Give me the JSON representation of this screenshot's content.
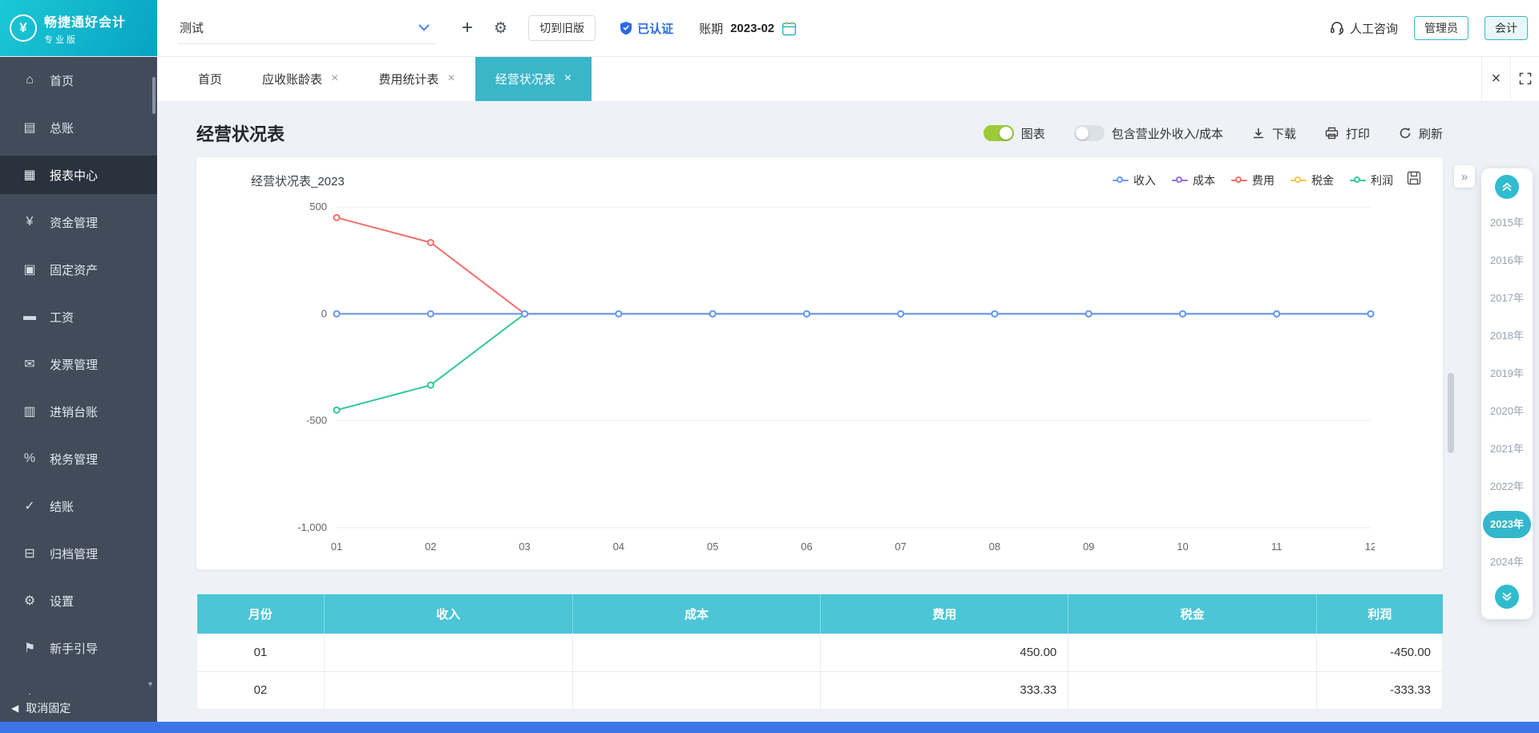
{
  "topbar": {
    "logo_title": "畅捷通好会计",
    "logo_subtitle": "专业版",
    "workspace": "测试",
    "switch_old": "切到旧版",
    "certified": "已认证",
    "period_label": "账期",
    "period_value": "2023-02",
    "consult": "人工咨询",
    "admin": "管理员",
    "role": "会计"
  },
  "sidebar": {
    "items": [
      {
        "label": "首页",
        "icon": "home",
        "active": false
      },
      {
        "label": "总账",
        "icon": "general-ledger",
        "active": false
      },
      {
        "label": "报表中心",
        "icon": "report-center",
        "active": true
      },
      {
        "label": "资金管理",
        "icon": "funds",
        "active": false
      },
      {
        "label": "固定资产",
        "icon": "fixed-assets",
        "active": false
      },
      {
        "label": "工资",
        "icon": "payroll",
        "active": false
      },
      {
        "label": "发票管理",
        "icon": "invoice",
        "active": false
      },
      {
        "label": "进销台账",
        "icon": "inventory-ledger",
        "active": false
      },
      {
        "label": "税务管理",
        "icon": "tax",
        "active": false
      },
      {
        "label": "结账",
        "icon": "closing",
        "active": false
      },
      {
        "label": "归档管理",
        "icon": "archive",
        "active": false
      },
      {
        "label": "设置",
        "icon": "settings",
        "active": false
      },
      {
        "label": "新手引导",
        "icon": "guide",
        "active": false
      }
    ],
    "unpin": "取消固定"
  },
  "tabs": [
    {
      "label": "首页",
      "closable": false,
      "active": false
    },
    {
      "label": "应收账龄表",
      "closable": true,
      "active": false
    },
    {
      "label": "费用统计表",
      "closable": true,
      "active": false
    },
    {
      "label": "经营状况表",
      "closable": true,
      "active": true
    }
  ],
  "page": {
    "title": "经营状况表",
    "chart_toggle": "图表",
    "include_toggle": "包含营业外收入/成本",
    "download": "下载",
    "print": "打印",
    "refresh": "刷新"
  },
  "chart_data": {
    "type": "line",
    "title": "经营状况表_2023",
    "x": [
      "01",
      "02",
      "03",
      "04",
      "05",
      "06",
      "07",
      "08",
      "09",
      "10",
      "11",
      "12"
    ],
    "ylim": [
      -1000,
      500
    ],
    "yticks": [
      500,
      0,
      -500,
      -1000
    ],
    "ytick_labels": [
      "500",
      "0",
      "-500",
      "-1,000"
    ],
    "grid": true,
    "legend_position": "top-right",
    "series": [
      {
        "name": "收入",
        "color": "#6b9bf0",
        "values": [
          0,
          0,
          0,
          0,
          0,
          0,
          0,
          0,
          0,
          0,
          0,
          0
        ]
      },
      {
        "name": "成本",
        "color": "#9a6fd8",
        "values": [
          0,
          0,
          0,
          0,
          0,
          0,
          0,
          0,
          0,
          0,
          0,
          0
        ]
      },
      {
        "name": "费用",
        "color": "#f1706c",
        "values": [
          450,
          333.33,
          0,
          0,
          0,
          0,
          0,
          0,
          0,
          0,
          0,
          0
        ]
      },
      {
        "name": "税金",
        "color": "#f5c84c",
        "values": [
          0,
          0,
          0,
          0,
          0,
          0,
          0,
          0,
          0,
          0,
          0,
          0
        ]
      },
      {
        "name": "利润",
        "color": "#33c79f",
        "values": [
          -450,
          -333.33,
          0,
          0,
          0,
          0,
          0,
          0,
          0,
          0,
          0,
          0
        ]
      }
    ]
  },
  "table": {
    "headers": [
      "月份",
      "收入",
      "成本",
      "费用",
      "税金",
      "利润"
    ],
    "rows": [
      [
        "01",
        "",
        "",
        "450.00",
        "",
        "-450.00"
      ],
      [
        "02",
        "",
        "",
        "333.33",
        "",
        "-333.33"
      ]
    ]
  },
  "year_panel": {
    "years": [
      "2015年",
      "2016年",
      "2017年",
      "2018年",
      "2019年",
      "2020年",
      "2021年",
      "2022年",
      "2023年",
      "2024年"
    ],
    "active": "2023年"
  },
  "colors": {
    "accent_teal": "#3ab6c9",
    "table_header_teal": "#4cc5d6",
    "toggle_on_green": "#9bca3a",
    "certified_blue": "#2d6ae8",
    "sidebar_dark": "#414b5a",
    "bottom_strip_blue": "#3b75e8"
  }
}
